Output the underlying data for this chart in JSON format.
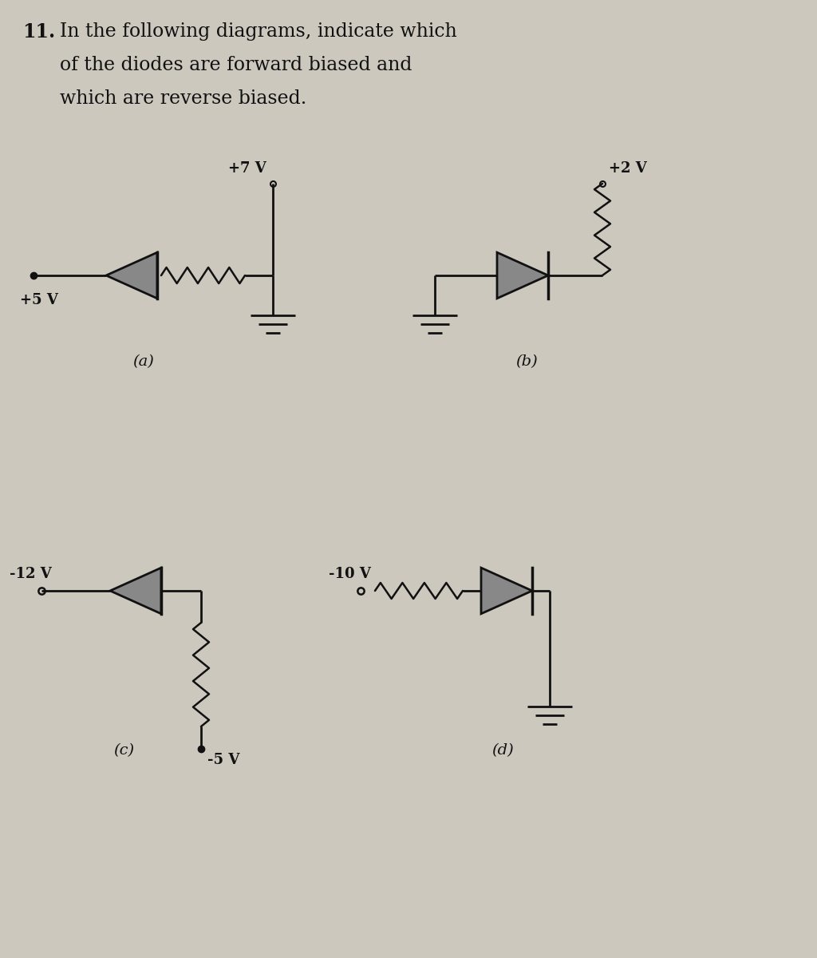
{
  "bg_color": "#cdc8be",
  "text_color": "#111111",
  "line_color": "#111111",
  "label_a": "(a)",
  "label_b": "(b)",
  "label_c": "(c)",
  "label_d": "(d)",
  "title_line1": "In the following diagrams, indicate which",
  "title_line2": "of the diodes are forward biased and",
  "title_line3": "which are reverse biased.",
  "title_num": "11.",
  "v5": "+5 V",
  "v7": "+7 V",
  "v2": "+2 V",
  "vm12": "-12 V",
  "vm5": "-5 V",
  "vm10": "-10 V"
}
